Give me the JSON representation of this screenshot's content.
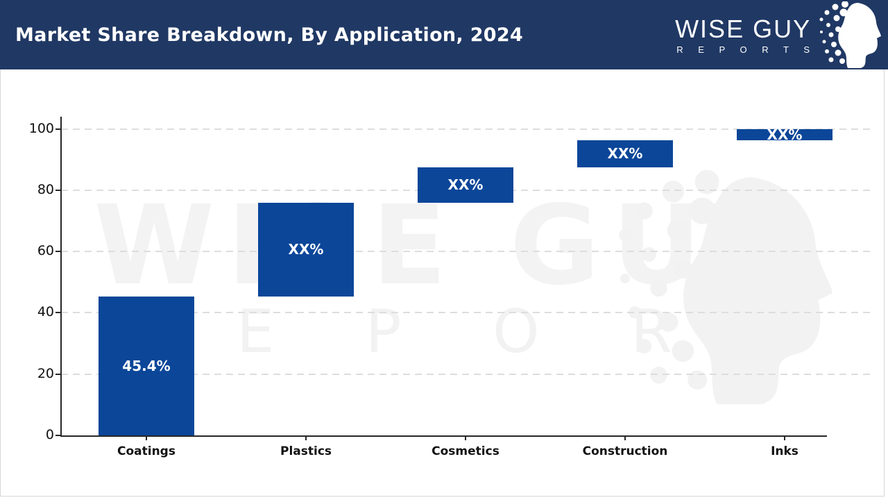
{
  "header": {
    "title": "Market Share Breakdown, By Application, 2024",
    "logo": {
      "line1": "WISE GUY",
      "line2": "R E P O R T S"
    },
    "bg_color": "#203864"
  },
  "watermark": {
    "line1": "WISE GUY",
    "line2": "R E P O R T S"
  },
  "chart_data": {
    "type": "bar",
    "subtype": "waterfall",
    "title": "Market Share Breakdown, By Application, 2024",
    "categories": [
      "Coatings",
      "Plastics",
      "Cosmetics",
      "Construction",
      "Inks"
    ],
    "segments": [
      {
        "category": "Coatings",
        "start": 0,
        "end": 45.4,
        "label": "45.4%"
      },
      {
        "category": "Plastics",
        "start": 45.4,
        "end": 75.9,
        "label": "XX%"
      },
      {
        "category": "Cosmetics",
        "start": 75.9,
        "end": 87.5,
        "label": "XX%"
      },
      {
        "category": "Construction",
        "start": 87.5,
        "end": 96.3,
        "label": "XX%"
      },
      {
        "category": "Inks",
        "start": 96.3,
        "end": 100,
        "label": "XX%"
      }
    ],
    "yticks": [
      0,
      20,
      40,
      60,
      80,
      100
    ],
    "ylim": [
      0,
      104
    ],
    "xlabel": "",
    "ylabel": "",
    "grid": "horizontal-dashed",
    "legend": "none",
    "bar_color": "#0B4699",
    "bar_label_color": "#FFFFFF",
    "axis_color": "#262626",
    "gridline_color": "#DDDDDD"
  }
}
